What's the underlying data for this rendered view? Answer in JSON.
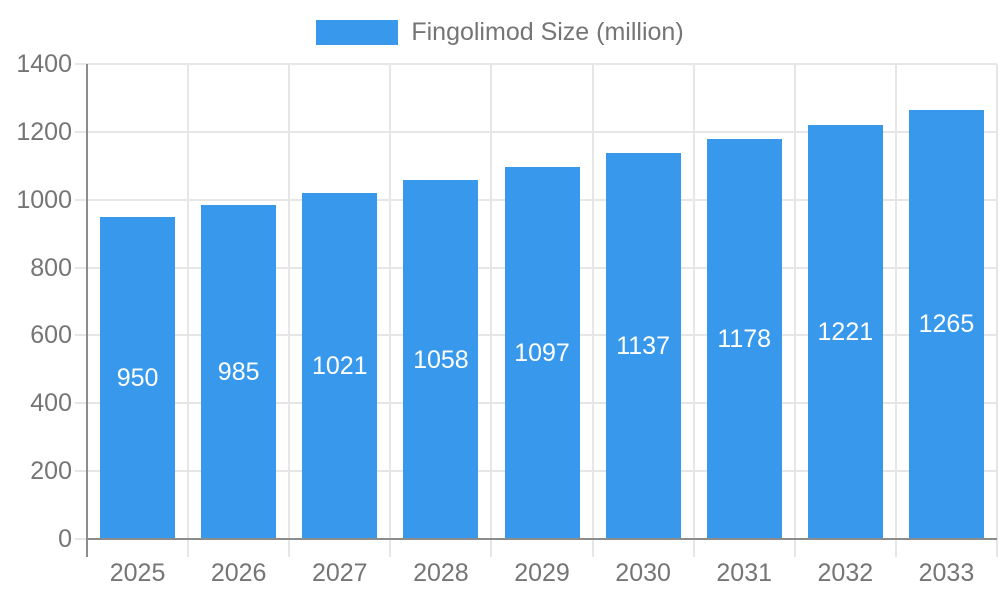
{
  "chart_data": {
    "type": "bar",
    "title": "",
    "legend": "Fingolimod Size (million)",
    "legend_position": "top",
    "categories": [
      "2025",
      "2026",
      "2027",
      "2028",
      "2029",
      "2030",
      "2031",
      "2032",
      "2033"
    ],
    "values": [
      950,
      985,
      1021,
      1058,
      1097,
      1137,
      1178,
      1221,
      1265
    ],
    "xlabel": "",
    "ylabel": "",
    "ylim": [
      0,
      1400
    ],
    "yticks": [
      0,
      200,
      400,
      600,
      800,
      1000,
      1200,
      1400
    ],
    "grid": true,
    "bar_labels_inside": true,
    "colors": {
      "bar": "#3899EC",
      "grid": "#E6E6E6",
      "axis": "#8C8C8C",
      "tick_text": "#757575",
      "legend_text": "#757575",
      "bar_label_text": "#FFFFFF",
      "background": "#FFFFFF"
    }
  }
}
